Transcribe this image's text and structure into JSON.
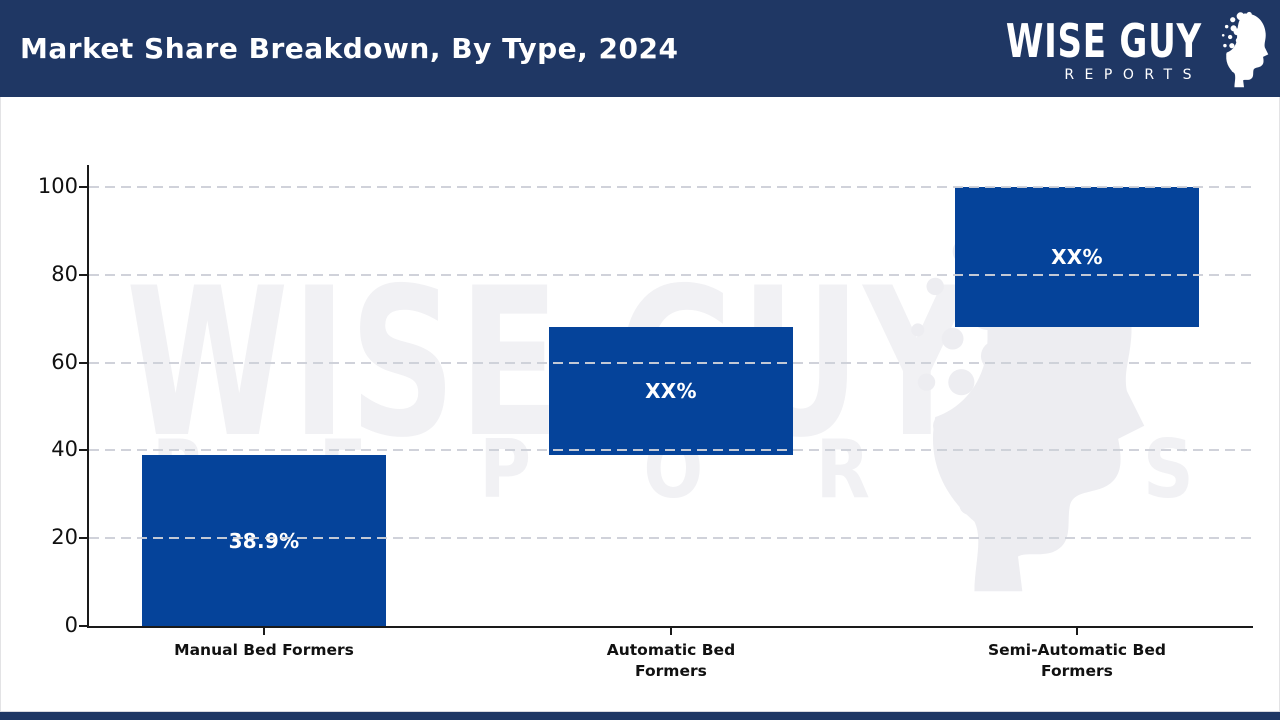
{
  "header": {
    "title": "Market Share Breakdown, By Type, 2024",
    "logo": {
      "line1": "WISE GUY",
      "line2": "REPORTS"
    }
  },
  "watermark": {
    "line1": "WISE GUY",
    "line2": "R E P O R T S"
  },
  "colors": {
    "header_bg": "#1f3764",
    "footer_bg": "#1f3764",
    "bar": "#05439a",
    "bar_label": "#ffffff",
    "axis": "#1a1a1a",
    "watermark": "#f1f1f4"
  },
  "chart_data": {
    "type": "bar",
    "subtype": "stacked-waterfall-percent",
    "title": "Market Share Breakdown, By Type, 2024",
    "categories": [
      "Manual Bed Formers",
      "Automatic Bed\nFormers",
      "Semi-Automatic Bed\nFormers"
    ],
    "segments": [
      {
        "category": "Manual Bed Formers",
        "start": 0,
        "end": 38.9,
        "label": "38.9%"
      },
      {
        "category": "Automatic Bed Formers",
        "start": 38.9,
        "end": 68,
        "label": "XX%"
      },
      {
        "category": "Semi-Automatic Bed Formers",
        "start": 68,
        "end": 100,
        "label": "XX%"
      }
    ],
    "y_ticks": [
      0,
      20,
      40,
      60,
      80,
      100
    ],
    "ylim": [
      0,
      105
    ],
    "xlabel": "",
    "ylabel": "",
    "grid": true,
    "grid_style": "dashed",
    "legend": false,
    "bar_color": "#05439a",
    "value_label_color": "#ffffff"
  }
}
